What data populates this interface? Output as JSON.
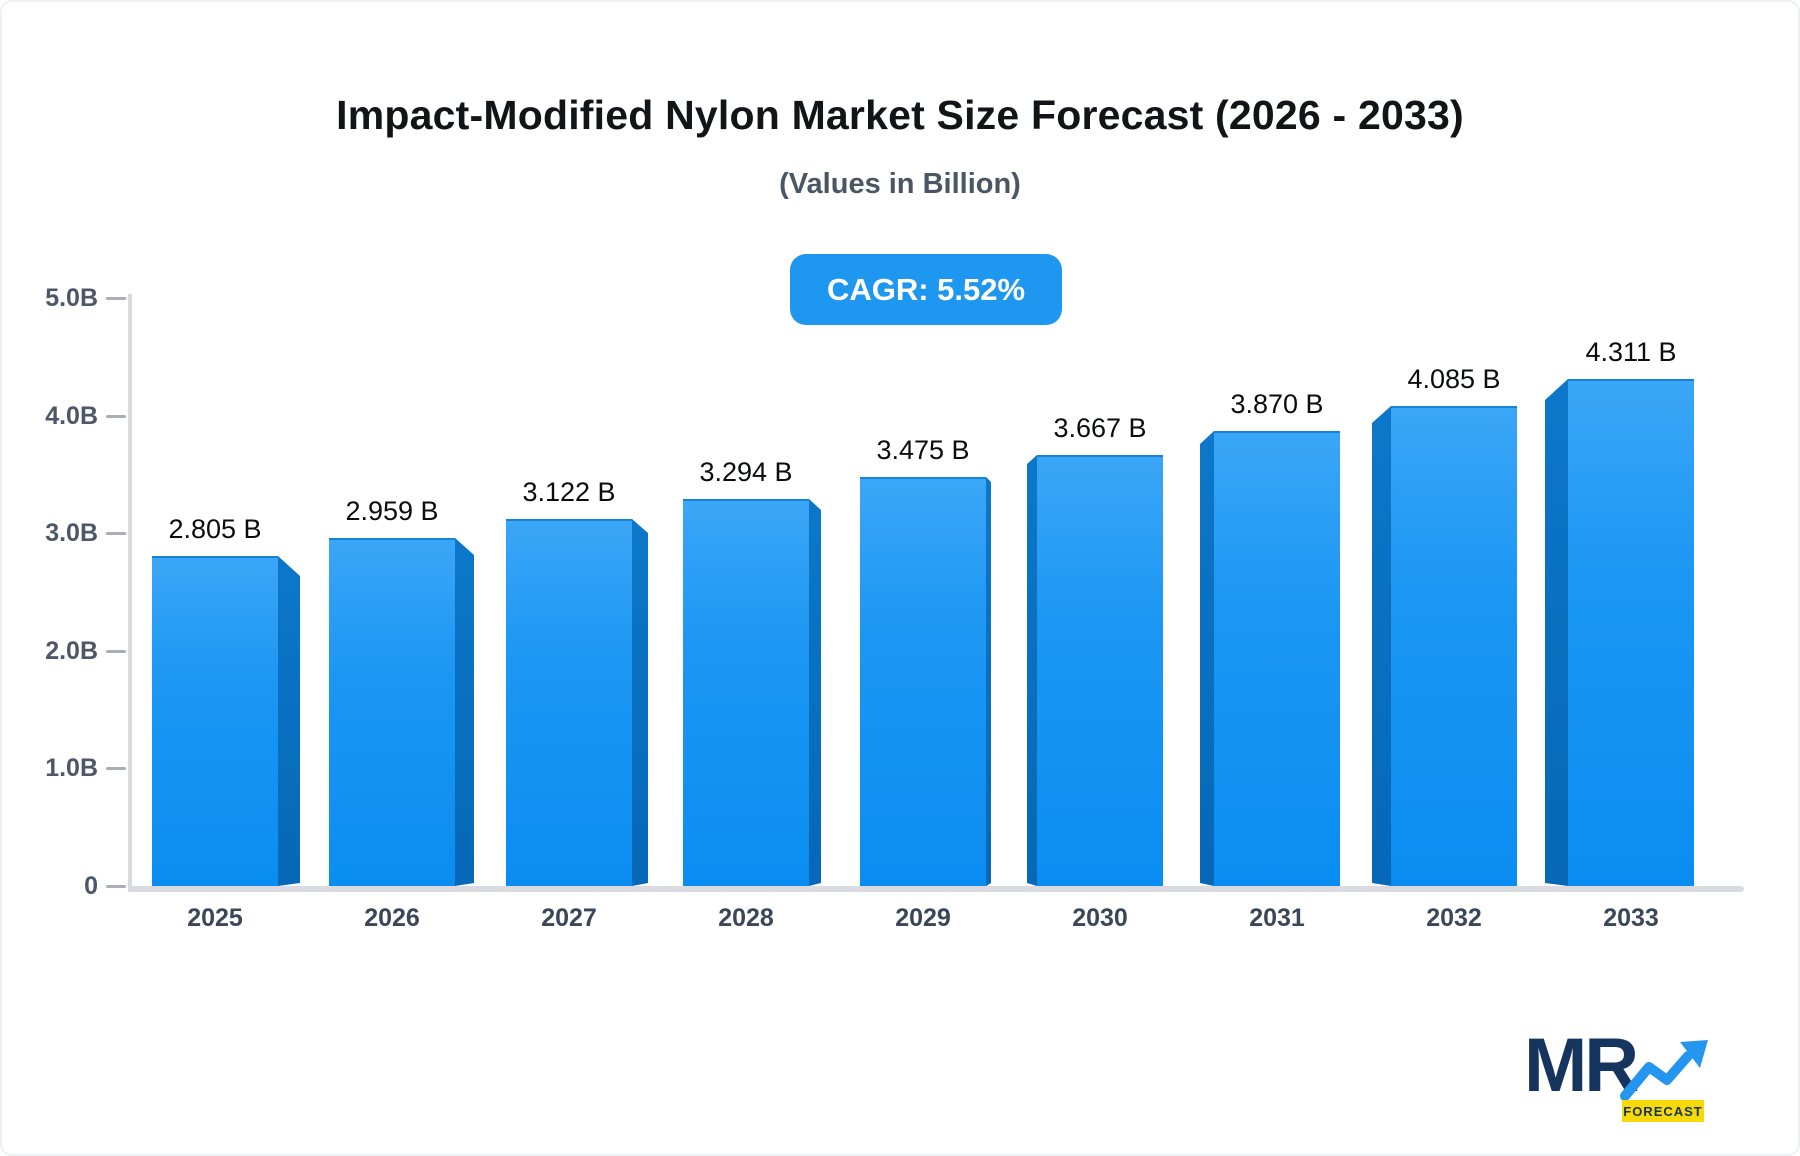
{
  "chart_data": {
    "type": "bar",
    "title": "Impact-Modified Nylon Market Size Forecast (2026 - 2033)",
    "subtitle": "(Values in Billion)",
    "cagr_label": "CAGR: 5.52%",
    "categories": [
      "2025",
      "2026",
      "2027",
      "2028",
      "2029",
      "2030",
      "2031",
      "2032",
      "2033"
    ],
    "values": [
      2.805,
      2.959,
      3.122,
      3.294,
      3.475,
      3.667,
      3.87,
      4.085,
      4.311
    ],
    "value_labels": [
      "2.805 B",
      "2.959 B",
      "3.122 B",
      "3.294 B",
      "3.475 B",
      "3.667 B",
      "3.870 B",
      "4.085 B",
      "4.311 B"
    ],
    "xlabel": "",
    "ylabel": "",
    "ylim": [
      0,
      5
    ],
    "y_ticks": [
      {
        "label": "5.0B",
        "value": 5.0
      },
      {
        "label": "4.0B",
        "value": 4.0
      },
      {
        "label": "3.0B",
        "value": 3.0
      },
      {
        "label": "2.0B",
        "value": 2.0
      },
      {
        "label": "1.0B",
        "value": 1.0
      },
      {
        "label": "0",
        "value": 0.0
      }
    ],
    "grid": "off",
    "legend": "none",
    "bar_style": "3d-perspective-toward-center",
    "colors": {
      "bar_face": "#1b97f3",
      "bar_face_light": "#3ba6f7",
      "bar_face_deep": "#0a8df2",
      "bar_side": "#0a70c2",
      "badge_background": "#1e97f0",
      "badge_text": "#ffffff",
      "axis_line": "#d7d9de",
      "tick_text": "#4e5668",
      "category_text": "#3b4659",
      "value_text": "#0b0c0e",
      "title_text": "#121418",
      "subtitle_text": "#4b5563"
    }
  },
  "logo": {
    "mr_text": "MR",
    "forecast_text": "FORECAST",
    "mr_color": "#16355e",
    "arrow_color": "#2596f0",
    "forecast_background": "#f7d908"
  }
}
